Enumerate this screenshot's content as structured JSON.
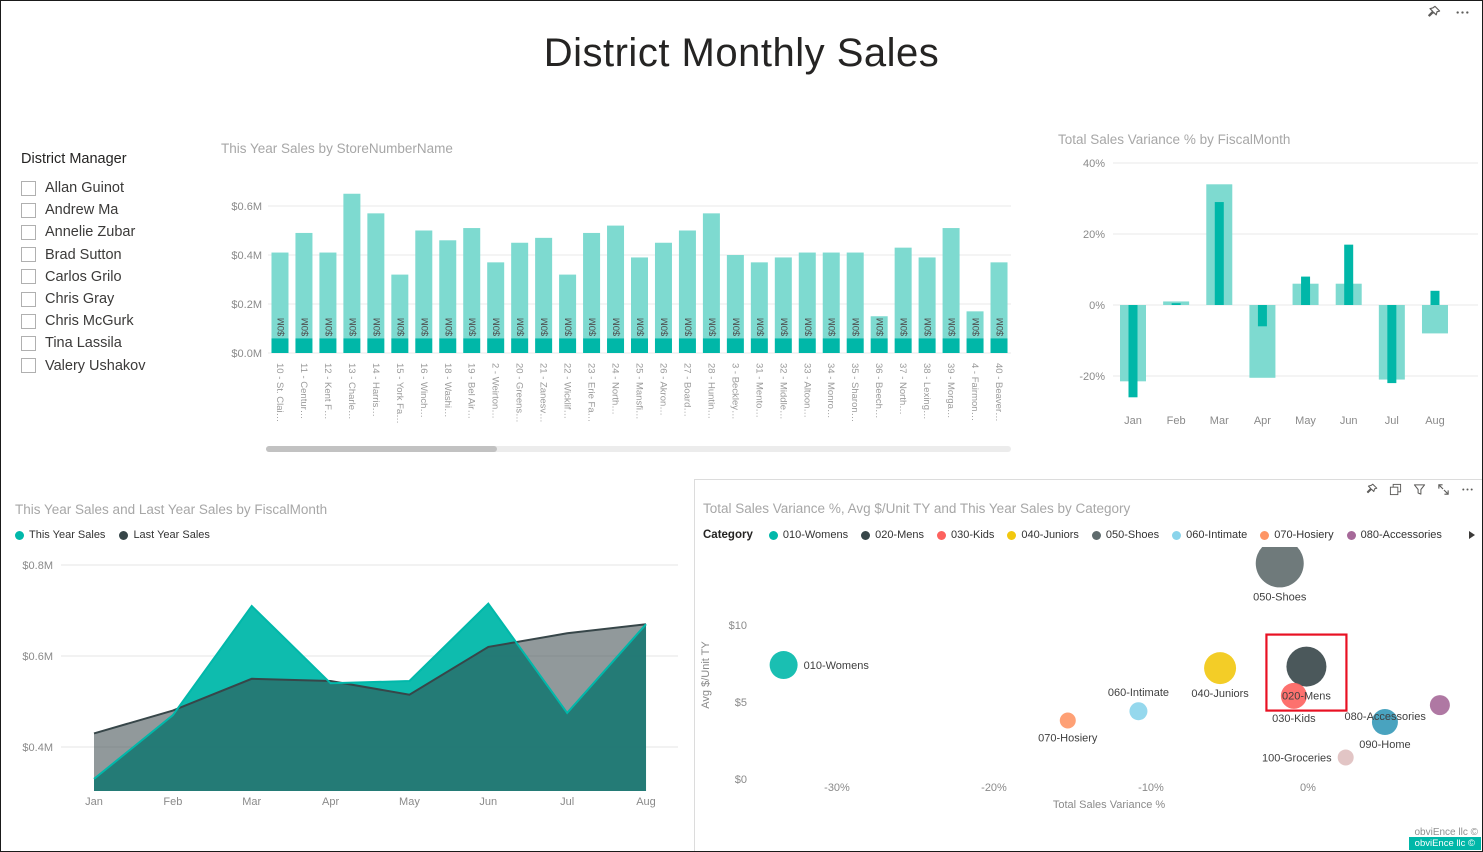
{
  "title": "District Monthly Sales",
  "branding": "obviEnce llc ©",
  "icons": {
    "report_header": [
      "pin",
      "more-options"
    ],
    "visual_header": [
      "pin",
      "copy",
      "filter",
      "focus-mode",
      "more-options"
    ]
  },
  "slicer": {
    "title": "District Manager",
    "items": [
      "Allan Guinot",
      "Andrew Ma",
      "Annelie Zubar",
      "Brad Sutton",
      "Carlos Grilo",
      "Chris Gray",
      "Chris McGurk",
      "Tina Lassila",
      "Valery Ushakov"
    ]
  },
  "chart_data": [
    {
      "id": "store-sales",
      "type": "bar",
      "title": "This Year Sales by StoreNumberName",
      "ylim": [
        0,
        0.65
      ],
      "yticks": [
        {
          "label": "$0.6M",
          "value": 0.6
        },
        {
          "label": "$0.4M",
          "value": 0.4
        },
        {
          "label": "$0.2M",
          "value": 0.2
        },
        {
          "label": "$0.0M",
          "value": 0.0
        }
      ],
      "bar_label": "$0M",
      "base_value": 0.06,
      "colors": {
        "main": "#7EDAD0",
        "base": "#00B7A8"
      },
      "categories": [
        "10 - St. Clai…",
        "11 - Centur…",
        "12 - Kent F…",
        "13 - Charle…",
        "14 - Harris…",
        "15 - York Fa…",
        "16 - Winch…",
        "18 - Washi…",
        "19 - Bel Air…",
        "2 - Weirton…",
        "20 - Greens…",
        "21 - Zanesv…",
        "22 - Wicklif…",
        "23 - Erie Fa…",
        "24 - North…",
        "25 - Mansfi…",
        "26 - Akron…",
        "27 - Board…",
        "28 - Huntin…",
        "3 - Beckley…",
        "31 - Mento…",
        "32 - Middle…",
        "33 - Altoon…",
        "34 - Monro…",
        "35 - Sharon…",
        "36 - Beech…",
        "37 - North…",
        "38 - Lexing…",
        "39 - Morga…",
        "4 - Fairmon…",
        "40 - Beaver…"
      ],
      "values": [
        0.41,
        0.49,
        0.41,
        0.65,
        0.57,
        0.32,
        0.5,
        0.46,
        0.51,
        0.37,
        0.45,
        0.47,
        0.32,
        0.49,
        0.52,
        0.39,
        0.45,
        0.5,
        0.57,
        0.4,
        0.37,
        0.39,
        0.41,
        0.41,
        0.41,
        0.15,
        0.43,
        0.39,
        0.51,
        0.17,
        0.37
      ],
      "scrollbar_thumb_fraction": 0.31
    },
    {
      "id": "variance-by-month",
      "type": "bar",
      "title": "Total Sales Variance % by FiscalMonth",
      "ylim": [
        -30,
        44
      ],
      "yticks": [
        {
          "label": "40%",
          "value": 40
        },
        {
          "label": "20%",
          "value": 20
        },
        {
          "label": "0%",
          "value": 0
        },
        {
          "label": "-20%",
          "value": -20
        }
      ],
      "categories": [
        "Jan",
        "Feb",
        "Mar",
        "Apr",
        "May",
        "Jun",
        "Jul",
        "Aug"
      ],
      "series": [
        {
          "name": "Total Sales Variance % (wide)",
          "color": "#7EDAD0",
          "values": [
            -21.5,
            1,
            34,
            -20.5,
            6,
            6,
            -21,
            -8
          ]
        },
        {
          "name": "Total Sales Variance % (narrow)",
          "color": "#00B7A8",
          "values": [
            -26,
            0.5,
            29,
            -6,
            8,
            17,
            -22,
            4
          ]
        }
      ]
    },
    {
      "id": "ty-vs-ly-by-month",
      "type": "area",
      "title": "This Year Sales and Last Year Sales by FiscalMonth",
      "ylim": [
        0.3,
        0.8
      ],
      "yticks": [
        {
          "label": "$0.8M",
          "value": 0.8
        },
        {
          "label": "$0.6M",
          "value": 0.6
        },
        {
          "label": "$0.4M",
          "value": 0.4
        }
      ],
      "categories": [
        "Jan",
        "Feb",
        "Mar",
        "Apr",
        "May",
        "Jun",
        "Jul",
        "Aug"
      ],
      "series": [
        {
          "name": "This Year Sales",
          "color": "#01B8AA",
          "values": [
            0.33,
            0.47,
            0.71,
            0.54,
            0.545,
            0.715,
            0.475,
            0.67
          ]
        },
        {
          "name": "Last Year Sales",
          "color": "#374649",
          "values": [
            0.43,
            0.48,
            0.55,
            0.545,
            0.515,
            0.62,
            0.65,
            0.67
          ]
        }
      ]
    },
    {
      "id": "category-bubbles",
      "type": "scatter",
      "title": "Total Sales Variance %, Avg $/Unit TY and This Year Sales by Category",
      "legend_title": "Category",
      "legend": [
        {
          "label": "010-Womens",
          "color": "#01B8AA"
        },
        {
          "label": "020-Mens",
          "color": "#374649"
        },
        {
          "label": "030-Kids",
          "color": "#FD625E"
        },
        {
          "label": "040-Juniors",
          "color": "#F2C80F"
        },
        {
          "label": "050-Shoes",
          "color": "#5F6B6D"
        },
        {
          "label": "060-Intimate",
          "color": "#8AD4EB"
        },
        {
          "label": "070-Hosiery",
          "color": "#FE9666"
        },
        {
          "label": "080-Accessories",
          "color": "#A66999"
        }
      ],
      "xlabel": "Total Sales Variance %",
      "ylabel": "Avg $/Unit TY",
      "xticks": [
        {
          "label": "-30%",
          "value": -30
        },
        {
          "label": "-20%",
          "value": -20
        },
        {
          "label": "-10%",
          "value": -10
        },
        {
          "label": "0%",
          "value": 0
        }
      ],
      "yticks": [
        {
          "label": "$10",
          "value": 10
        },
        {
          "label": "$5",
          "value": 5
        },
        {
          "label": "$0",
          "value": 0
        }
      ],
      "points": [
        {
          "label": "010-Womens",
          "x": -33.4,
          "y": 7.4,
          "r": 14,
          "color": "#01B8AA",
          "label_pos": "right"
        },
        {
          "label": "050-Shoes",
          "x": -1.8,
          "y": 14.0,
          "r": 24,
          "color": "#5F6B6D",
          "label_pos": "below"
        },
        {
          "label": "040-Juniors",
          "x": -5.6,
          "y": 7.2,
          "r": 16,
          "color": "#F2C80F",
          "label_pos": "below"
        },
        {
          "label": "020-Mens",
          "x": -0.1,
          "y": 7.3,
          "r": 20,
          "color": "#374649",
          "label_pos": "below"
        },
        {
          "label": "030-Kids",
          "x": -0.9,
          "y": 5.4,
          "r": 13,
          "color": "#FD625E",
          "label_pos": "below"
        },
        {
          "label": "060-Intimate",
          "x": -10.8,
          "y": 4.4,
          "r": 9,
          "color": "#8AD4EB",
          "label_pos": "above"
        },
        {
          "label": "070-Hosiery",
          "x": -15.3,
          "y": 3.8,
          "r": 8,
          "color": "#FE9666",
          "label_pos": "below"
        },
        {
          "label": "080-Accessories",
          "x": 8.4,
          "y": 4.8,
          "r": 10,
          "color": "#A66999",
          "label_pos": "left-below"
        },
        {
          "label": "090-Home",
          "x": 4.9,
          "y": 3.7,
          "r": 13,
          "color": "#3599B8",
          "label_pos": "below"
        },
        {
          "label": "100-Groceries",
          "x": 2.4,
          "y": 1.4,
          "r": 8,
          "color": "#DFBFBF",
          "label_pos": "left"
        }
      ],
      "highlight_point": "020-Mens",
      "highlight_color": "#E81123"
    }
  ]
}
